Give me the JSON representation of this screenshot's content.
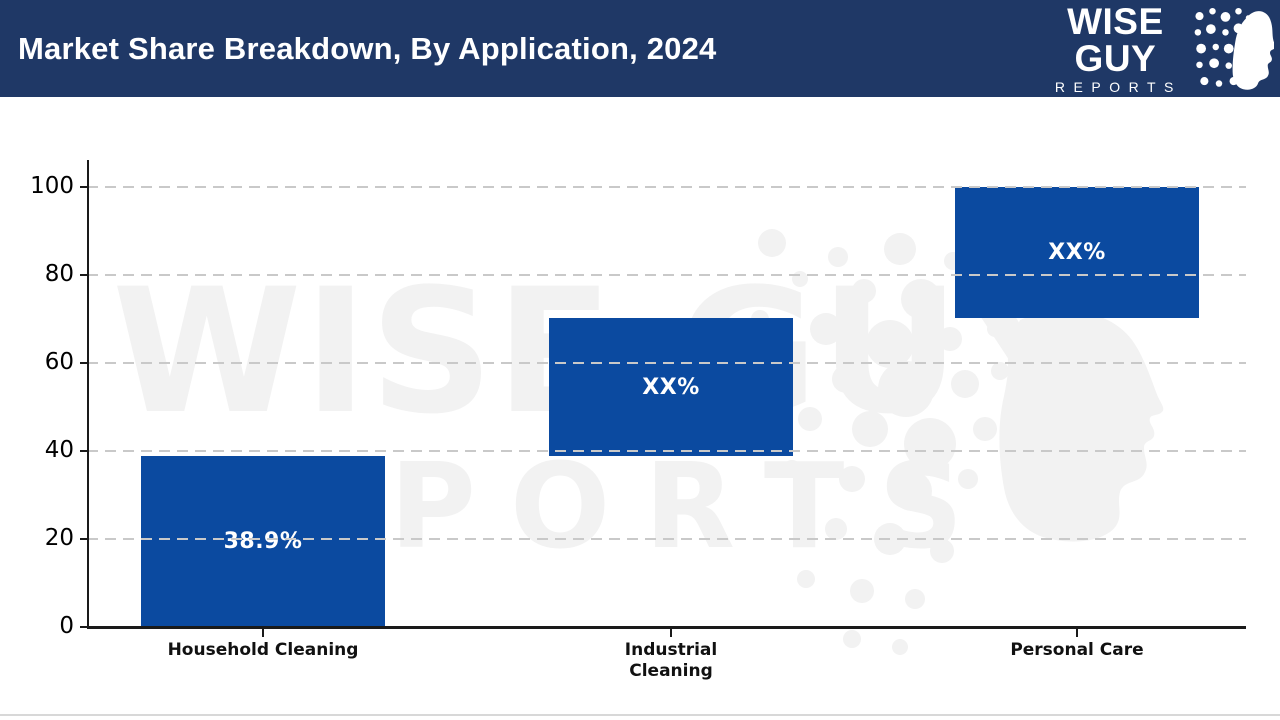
{
  "header": {
    "title": "Market Share Breakdown, By Application, 2024",
    "logo": {
      "wordmark": "WISE GUY",
      "subtitle": "REPORTS",
      "icon": "dot-face-profile-icon"
    }
  },
  "watermark": {
    "line1": "WISE GUY",
    "line2": "REPORTS",
    "icon": "dot-face-profile-watermark"
  },
  "colors": {
    "header_bg": "#1F3866",
    "header_text": "#FFFFFF",
    "bar_fill": "#0B4AA0",
    "bar_label_text": "#FFFFFF",
    "watermark_gray": "#F2F2F2",
    "gridline": "#C9C9C9",
    "axis": "#1A1A1A",
    "tick_label": "#000000",
    "bottom_rule": "#D8D8D8"
  },
  "chart_data": {
    "type": "bar",
    "variant": "floating-segment-percentage",
    "title": "Market Share Breakdown, By Application, 2024",
    "unit": "%",
    "categories": [
      {
        "label_lines": [
          "Household Cleaning"
        ],
        "start": 0,
        "end": 38.9,
        "bar_label": "38.9%"
      },
      {
        "label_lines": [
          "Industrial",
          "Cleaning"
        ],
        "start": 38.9,
        "end": 70.3,
        "bar_label": "XX%"
      },
      {
        "label_lines": [
          "Personal Care"
        ],
        "start": 70.3,
        "end": 100,
        "bar_label": "XX%"
      }
    ],
    "yticks": [
      0,
      20,
      40,
      60,
      80,
      100
    ],
    "ylim": [
      0,
      105
    ],
    "xlabel": "",
    "ylabel": "",
    "grid": "horizontal-dashed",
    "legend": null
  }
}
